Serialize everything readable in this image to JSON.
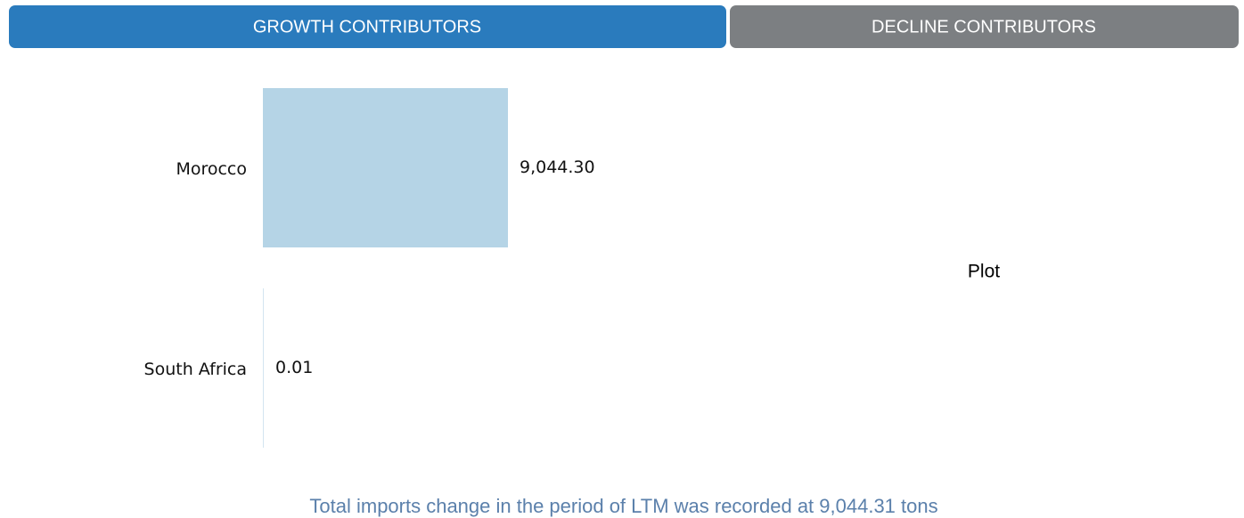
{
  "tabs": [
    "GROWTH CONTRIBUTORS",
    "DECLINE CONTRIBUTORS"
  ],
  "chart_data": {
    "type": "hbar",
    "title": "Plot",
    "categories": [
      "Morocco",
      "South Africa"
    ],
    "values": [
      9044.3,
      0.01
    ],
    "value_labels": [
      "9,044.30",
      "0.01"
    ],
    "color": "#b5d4e6"
  },
  "footer": "Total imports change in the period of LTM was recorded at 9,044.31 tons"
}
